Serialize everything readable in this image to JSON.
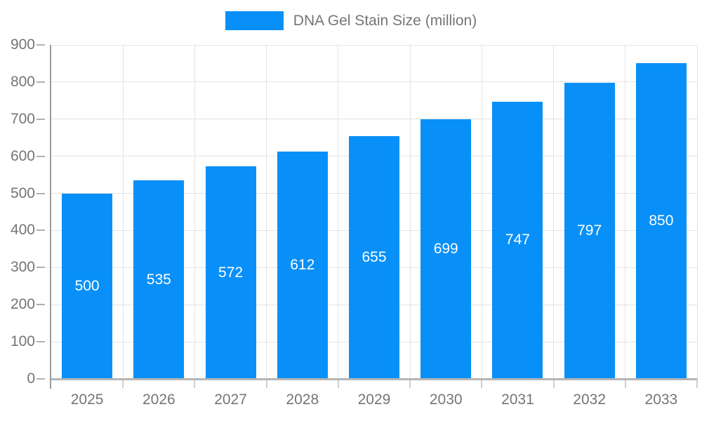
{
  "legend": {
    "label": "DNA Gel Stain Size (million)",
    "swatch_color": "#0890f8"
  },
  "chart_data": {
    "type": "bar",
    "title": "DNA Gel Stain Size (million)",
    "categories": [
      "2025",
      "2026",
      "2027",
      "2028",
      "2029",
      "2030",
      "2031",
      "2032",
      "2033"
    ],
    "values": [
      500,
      535,
      572,
      612,
      655,
      699,
      747,
      797,
      850
    ],
    "xlabel": "",
    "ylabel": "",
    "ylim": [
      0,
      900
    ],
    "y_ticks": [
      0,
      100,
      200,
      300,
      400,
      500,
      600,
      700,
      800,
      900
    ],
    "grid": true,
    "legend_position": "top",
    "bar_color": "#0890f8",
    "bar_label_color": "#ffffff",
    "axis_text_color": "#757575",
    "grid_line_color": "#e3e3e3",
    "axis_line_color": "#9a9a9a",
    "baseline_color": "#b5b5b5"
  }
}
